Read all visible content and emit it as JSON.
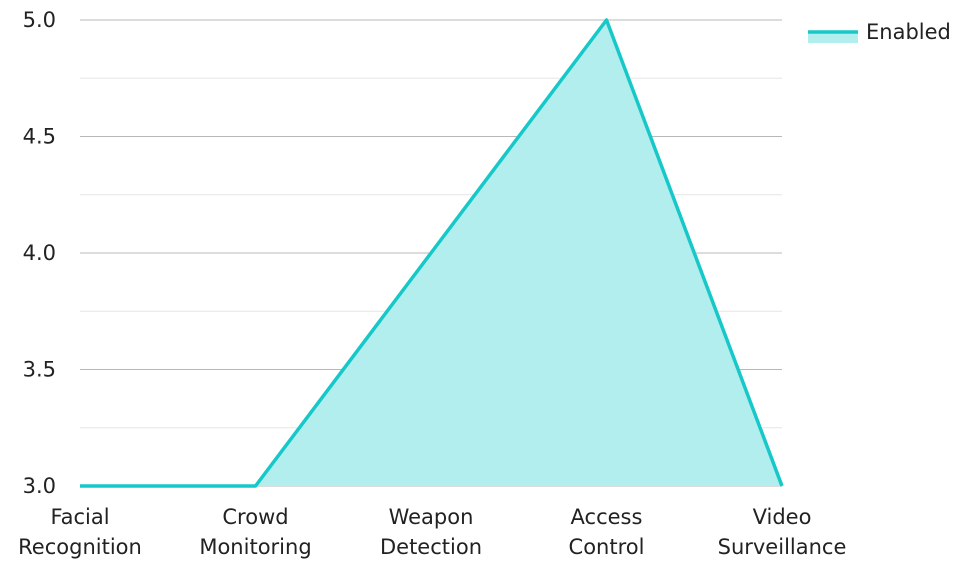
{
  "chart_data": {
    "type": "area",
    "categories": [
      [
        "Facial",
        "Recognition"
      ],
      [
        "Crowd",
        "Monitoring"
      ],
      [
        "Weapon",
        "Detection"
      ],
      [
        "Access",
        "Control"
      ],
      [
        "Video",
        "Surveillance"
      ]
    ],
    "series": [
      {
        "name": "Enabled",
        "values": [
          3.0,
          3.0,
          4.0,
          5.0,
          3.0
        ],
        "color": "#17C8C8",
        "fill": "#B2EEEE"
      }
    ],
    "ylim": [
      3.0,
      5.0
    ],
    "yticks": [
      "3.0",
      "3.5",
      "4.0",
      "4.5",
      "5.0"
    ],
    "ytick_values": [
      3.0,
      3.5,
      4.0,
      4.5,
      5.0
    ],
    "minor_yticks": [
      3.25,
      3.75,
      4.25,
      4.75
    ],
    "grid": true,
    "legend": "top-right"
  }
}
